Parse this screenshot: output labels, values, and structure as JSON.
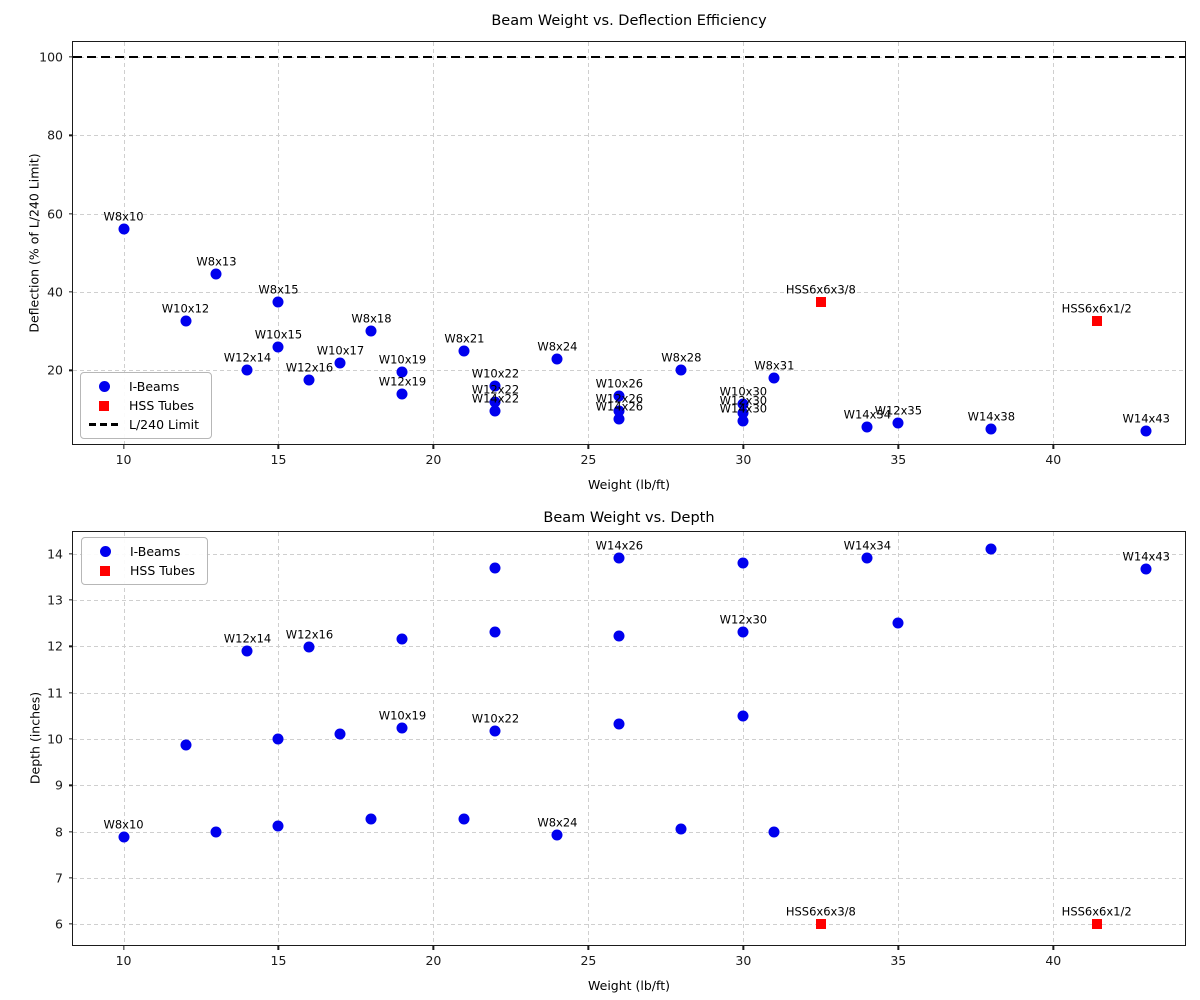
{
  "figure": {
    "background": "#ffffff"
  },
  "colors": {
    "ibeam": "#0000ee",
    "hss": "#ff0000",
    "limit_line": "#000000",
    "grid": "#cfcfcf",
    "spine": "#1b1b1b"
  },
  "chart_data": [
    {
      "type": "scatter",
      "title": "Beam Weight vs. Deflection Efficiency",
      "xlabel": "Weight (lb/ft)",
      "ylabel": "Deflection (% of L/240 Limit)",
      "xlim": [
        8.37,
        44.25
      ],
      "ylim": [
        1.2,
        103.8
      ],
      "xticks": [
        10,
        15,
        20,
        25,
        30,
        35,
        40
      ],
      "yticks": [
        20,
        40,
        60,
        80,
        100
      ],
      "grid": "dashed",
      "legend": {
        "position": "lower-left",
        "entries": [
          {
            "label": "I-Beams",
            "marker": "circle",
            "color": "#0000ee"
          },
          {
            "label": "HSS Tubes",
            "marker": "square",
            "color": "#ff0000"
          },
          {
            "label": "L/240 Limit",
            "marker": "dashed-line",
            "color": "#000000"
          }
        ]
      },
      "hlines": [
        {
          "y": 100,
          "color": "#000000",
          "style": "dashed"
        }
      ],
      "series": [
        {
          "name": "I-Beams",
          "marker": "circle",
          "color": "#0000ee",
          "points": [
            {
              "label": "W8x10",
              "x": 10,
              "y": 56,
              "annotate": true
            },
            {
              "label": "W10x12",
              "x": 12,
              "y": 32.5,
              "annotate": true
            },
            {
              "label": "W8x13",
              "x": 13,
              "y": 44.5,
              "annotate": true
            },
            {
              "label": "W12x14",
              "x": 14,
              "y": 20,
              "annotate": true
            },
            {
              "label": "W8x15",
              "x": 15,
              "y": 37.5,
              "annotate": true
            },
            {
              "label": "W10x15",
              "x": 15,
              "y": 26,
              "annotate": true
            },
            {
              "label": "W12x16",
              "x": 16,
              "y": 17.5,
              "annotate": true
            },
            {
              "label": "W10x17",
              "x": 17,
              "y": 22,
              "annotate": true
            },
            {
              "label": "W8x18",
              "x": 18,
              "y": 30,
              "annotate": true
            },
            {
              "label": "W10x19",
              "x": 19,
              "y": 19.5,
              "annotate": true
            },
            {
              "label": "W12x19",
              "x": 19,
              "y": 14,
              "annotate": true
            },
            {
              "label": "W8x21",
              "x": 21,
              "y": 25,
              "annotate": true
            },
            {
              "label": "W10x22",
              "x": 22,
              "y": 16,
              "annotate": true
            },
            {
              "label": "W12x22",
              "x": 22,
              "y": 12,
              "annotate": true
            },
            {
              "label": "W14x22",
              "x": 22,
              "y": 9.5,
              "annotate": true
            },
            {
              "label": "W8x24",
              "x": 24,
              "y": 23,
              "annotate": true
            },
            {
              "label": "W10x26",
              "x": 26,
              "y": 13.5,
              "annotate": true
            },
            {
              "label": "W12x26",
              "x": 26,
              "y": 9.5,
              "annotate": true
            },
            {
              "label": "W14x26",
              "x": 26,
              "y": 7.5,
              "annotate": true
            },
            {
              "label": "W8x28",
              "x": 28,
              "y": 20,
              "annotate": true
            },
            {
              "label": "W10x30",
              "x": 30,
              "y": 11.5,
              "annotate": true
            },
            {
              "label": "W12x30",
              "x": 30,
              "y": 9,
              "annotate": true
            },
            {
              "label": "W14x30",
              "x": 30,
              "y": 7,
              "annotate": true
            },
            {
              "label": "W8x31",
              "x": 31,
              "y": 18,
              "annotate": true
            },
            {
              "label": "W14x34",
              "x": 34,
              "y": 5.5,
              "annotate": true
            },
            {
              "label": "W12x35",
              "x": 35,
              "y": 6.5,
              "annotate": true
            },
            {
              "label": "W14x38",
              "x": 38,
              "y": 5,
              "annotate": true
            },
            {
              "label": "W14x43",
              "x": 43,
              "y": 4.5,
              "annotate": true
            }
          ]
        },
        {
          "name": "HSS Tubes",
          "marker": "square",
          "color": "#ff0000",
          "points": [
            {
              "label": "HSS6x6x3/8",
              "x": 32.5,
              "y": 37.5,
              "annotate": true
            },
            {
              "label": "HSS6x6x1/2",
              "x": 41.4,
              "y": 32.5,
              "annotate": true
            }
          ]
        }
      ]
    },
    {
      "type": "scatter",
      "title": "Beam Weight vs. Depth",
      "xlabel": "Weight (lb/ft)",
      "ylabel": "Depth (inches)",
      "xlim": [
        8.37,
        44.25
      ],
      "ylim": [
        5.55,
        14.47
      ],
      "xticks": [
        10,
        15,
        20,
        25,
        30,
        35,
        40
      ],
      "yticks": [
        6,
        7,
        8,
        9,
        10,
        11,
        12,
        13,
        14
      ],
      "grid": "dashed",
      "legend": {
        "position": "upper-left",
        "entries": [
          {
            "label": "I-Beams",
            "marker": "circle",
            "color": "#0000ee"
          },
          {
            "label": "HSS Tubes",
            "marker": "square",
            "color": "#ff0000"
          }
        ]
      },
      "hlines": [],
      "series": [
        {
          "name": "I-Beams",
          "marker": "circle",
          "color": "#0000ee",
          "points": [
            {
              "label": "W8x10",
              "x": 10,
              "y": 7.89,
              "annotate": true
            },
            {
              "label": "W10x12",
              "x": 12,
              "y": 9.87,
              "annotate": false
            },
            {
              "label": "W8x13",
              "x": 13,
              "y": 7.99,
              "annotate": false
            },
            {
              "label": "W12x14",
              "x": 14,
              "y": 11.91,
              "annotate": true
            },
            {
              "label": "W8x15",
              "x": 15,
              "y": 8.11,
              "annotate": false
            },
            {
              "label": "W10x15",
              "x": 15,
              "y": 9.99,
              "annotate": false
            },
            {
              "label": "W12x16",
              "x": 16,
              "y": 11.99,
              "annotate": true
            },
            {
              "label": "W10x17",
              "x": 17,
              "y": 10.11,
              "annotate": false
            },
            {
              "label": "W8x18",
              "x": 18,
              "y": 8.27,
              "annotate": false
            },
            {
              "label": "W10x19",
              "x": 19,
              "y": 10.24,
              "annotate": true
            },
            {
              "label": "W12x19",
              "x": 19,
              "y": 12.16,
              "annotate": false
            },
            {
              "label": "W8x21",
              "x": 21,
              "y": 8.28,
              "annotate": false
            },
            {
              "label": "W10x22",
              "x": 22,
              "y": 10.17,
              "annotate": true
            },
            {
              "label": "W12x22",
              "x": 22,
              "y": 12.31,
              "annotate": false
            },
            {
              "label": "W14x22",
              "x": 22,
              "y": 13.7,
              "annotate": false
            },
            {
              "label": "W8x24",
              "x": 24,
              "y": 7.93,
              "annotate": true
            },
            {
              "label": "W10x26",
              "x": 26,
              "y": 10.33,
              "annotate": false
            },
            {
              "label": "W12x26",
              "x": 26,
              "y": 12.22,
              "annotate": false
            },
            {
              "label": "W14x26",
              "x": 26,
              "y": 13.91,
              "annotate": true
            },
            {
              "label": "W8x28",
              "x": 28,
              "y": 8.06,
              "annotate": false
            },
            {
              "label": "W10x30",
              "x": 30,
              "y": 10.5,
              "annotate": false
            },
            {
              "label": "W12x30",
              "x": 30,
              "y": 12.3,
              "annotate": true
            },
            {
              "label": "W14x30",
              "x": 30,
              "y": 13.8,
              "annotate": false
            },
            {
              "label": "W8x31",
              "x": 31,
              "y": 8.0,
              "annotate": false
            },
            {
              "label": "W14x34",
              "x": 34,
              "y": 13.9,
              "annotate": true
            },
            {
              "label": "W12x35",
              "x": 35,
              "y": 12.5,
              "annotate": false
            },
            {
              "label": "W14x38",
              "x": 38,
              "y": 14.1,
              "annotate": false
            },
            {
              "label": "W14x43",
              "x": 43,
              "y": 13.68,
              "annotate": true
            }
          ]
        },
        {
          "name": "HSS Tubes",
          "marker": "square",
          "color": "#ff0000",
          "points": [
            {
              "label": "HSS6x6x3/8",
              "x": 32.5,
              "y": 6.0,
              "annotate": true
            },
            {
              "label": "HSS6x6x1/2",
              "x": 41.4,
              "y": 6.0,
              "annotate": true
            }
          ]
        }
      ]
    }
  ]
}
